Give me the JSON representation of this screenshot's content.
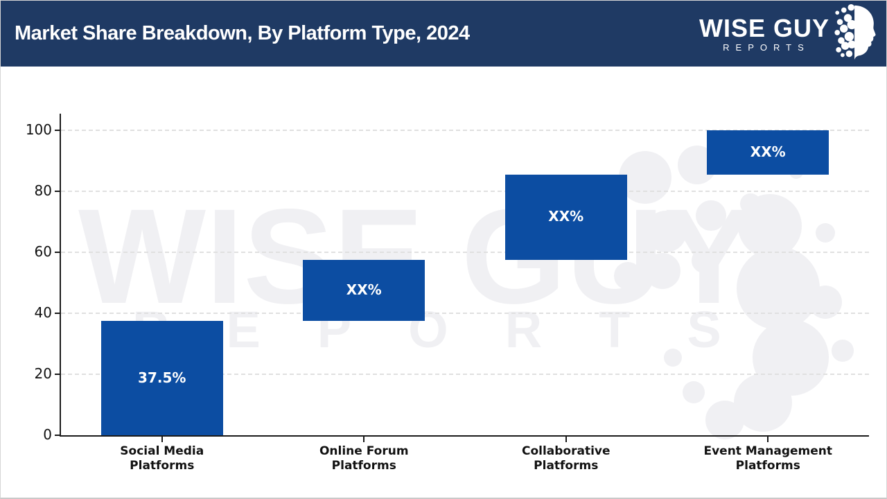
{
  "header": {
    "title": "Market Share Breakdown, By Platform Type, 2024",
    "background_color": "#1f3a64",
    "logo": {
      "line1": "WISE GUY",
      "line2": "REPORTS",
      "head_icon": "dotted-head-profile"
    }
  },
  "watermark": {
    "line1": "WISE GUY",
    "line2": "REPORTS"
  },
  "chart_data": {
    "type": "bar",
    "variant": "waterfall",
    "title": "Market Share Breakdown, By Platform Type, 2024",
    "categories": [
      "Social Media\nPlatforms",
      "Online Forum\nPlatforms",
      "Collaborative\nPlatforms",
      "Event Management\nPlatforms"
    ],
    "segments": [
      {
        "category": "Social Media Platforms",
        "start": 0,
        "end": 37.5,
        "value": 37.5,
        "label": "37.5%"
      },
      {
        "category": "Online Forum Platforms",
        "start": 37.5,
        "end": 57.5,
        "value": 20,
        "label": "XX%"
      },
      {
        "category": "Collaborative Platforms",
        "start": 57.5,
        "end": 85.5,
        "value": 28,
        "label": "XX%"
      },
      {
        "category": "Event Management Platforms",
        "start": 85.5,
        "end": 100,
        "value": 14.5,
        "label": "XX%"
      }
    ],
    "xlabel": "",
    "ylabel": "",
    "ylim": [
      0,
      100
    ],
    "yticks": [
      0,
      20,
      40,
      60,
      80,
      100
    ],
    "grid": "horizontal-dashed",
    "legend": "none",
    "bar_color": "#0c4da2",
    "bar_label_color": "#ffffff",
    "axis_color": "#1a1a1a",
    "gridline_color": "#e0e0e0",
    "watermark_color": "#f0f0f3"
  }
}
